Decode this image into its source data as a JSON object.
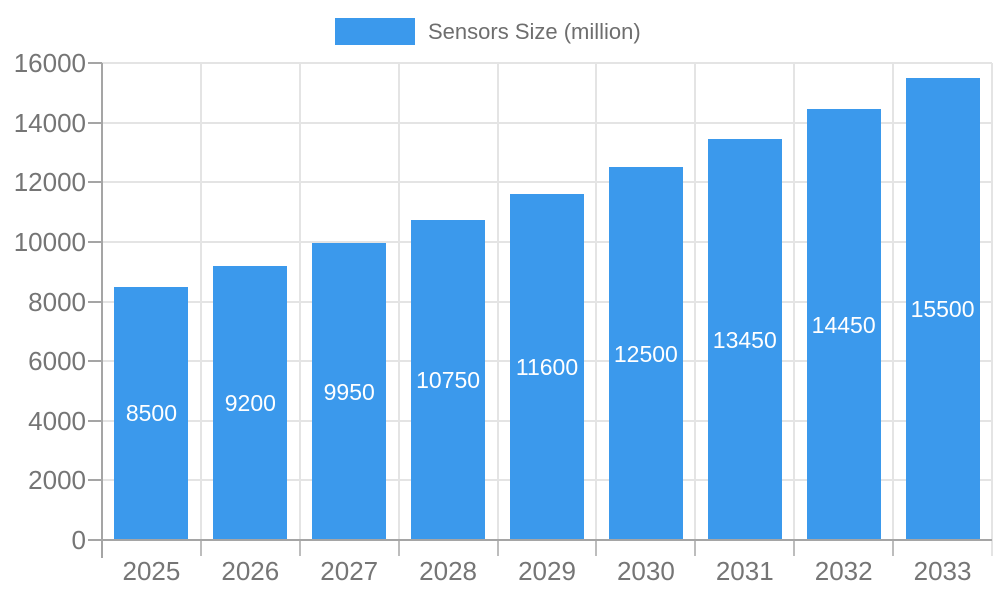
{
  "chart_data": {
    "type": "bar",
    "title": "",
    "legend": {
      "label": "Sensors Size (million)",
      "position": "top"
    },
    "categories": [
      "2025",
      "2026",
      "2027",
      "2028",
      "2029",
      "2030",
      "2031",
      "2032",
      "2033"
    ],
    "series": [
      {
        "name": "Sensors Size (million)",
        "values": [
          8500,
          9200,
          9950,
          10750,
          11600,
          12500,
          13450,
          14450,
          15500
        ]
      }
    ],
    "bar_value_labels": [
      "8500",
      "9200",
      "9950",
      "10750",
      "11600",
      "12500",
      "13450",
      "14450",
      "15500"
    ],
    "xlabel": "",
    "ylabel": "",
    "ylim": [
      0,
      16000
    ],
    "yticks": [
      0,
      2000,
      4000,
      6000,
      8000,
      10000,
      12000,
      14000,
      16000
    ],
    "grid": true,
    "colors": {
      "bar": "#3b99ec",
      "bar_label_text": "#ffffff",
      "axis_text": "#757575",
      "legend_text": "#6e6e6e",
      "grid_line": "#e4e4e4",
      "axis_line": "#a5a5a5",
      "tick_mark": "#bdbdbd",
      "background": "#ffffff"
    }
  }
}
